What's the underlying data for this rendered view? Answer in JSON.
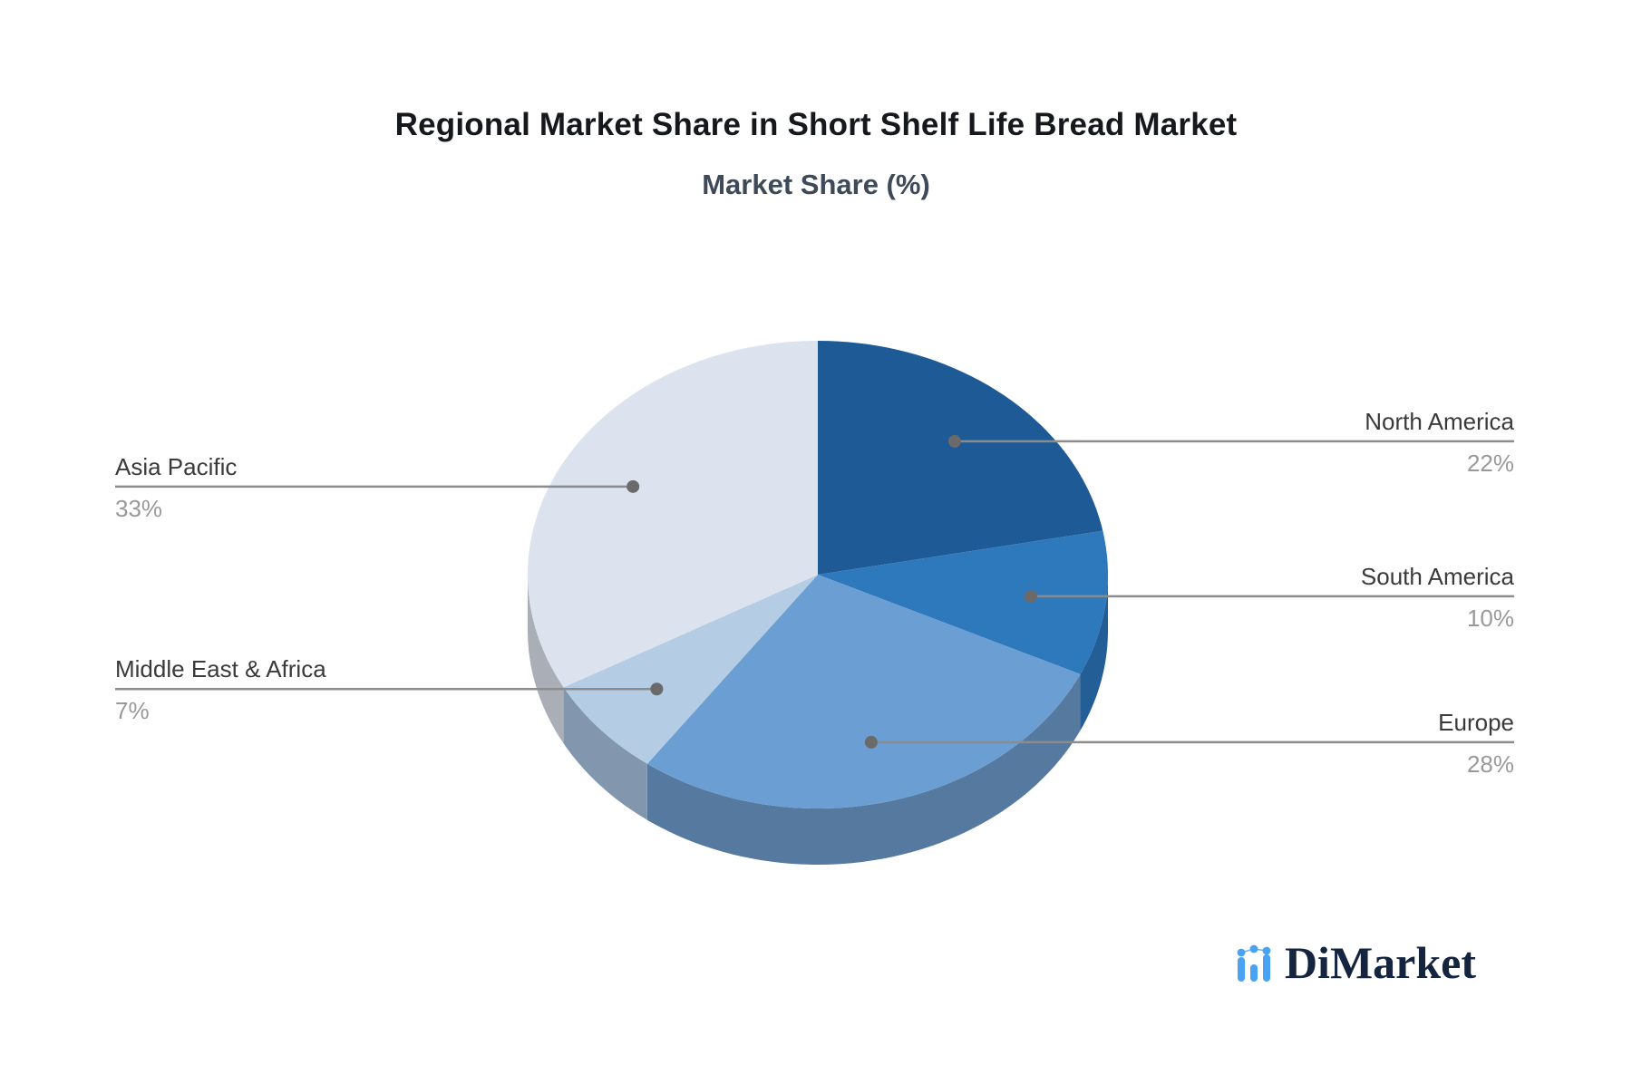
{
  "chart_data": {
    "type": "pie",
    "style": "3d-pie-with-leader-labels",
    "title": "Regional Market Share in Short Shelf Life Bread Market",
    "subtitle": "Market Share (%)",
    "unit": "%",
    "start_angle_deg": 0,
    "direction": "clockwise",
    "slices": [
      {
        "label": "North America",
        "value": 22,
        "pct_label": "22%",
        "color": "#1d5a96",
        "side_color": "#17487a",
        "label_side": "right"
      },
      {
        "label": "South America",
        "value": 10,
        "pct_label": "10%",
        "color": "#2e78bc",
        "side_color": "#235e97",
        "label_side": "right"
      },
      {
        "label": "Europe",
        "value": 28,
        "pct_label": "28%",
        "color": "#6b9fd4",
        "side_color": "#56799f",
        "label_side": "right"
      },
      {
        "label": "Middle East & Africa",
        "value": 7,
        "pct_label": "7%",
        "color": "#b5cde4",
        "side_color": "#8297ad",
        "label_side": "left"
      },
      {
        "label": "Asia Pacific",
        "value": 33,
        "pct_label": "33%",
        "color": "#dce3ef",
        "side_color": "#a9aeb7",
        "label_side": "left"
      }
    ],
    "colors": {
      "leader_line": "#8c8c8c",
      "leader_dot": "#6a6a6a",
      "label_text": "#3a3a3a",
      "pct_text": "#999999",
      "title_text": "#15181c",
      "subtitle_text": "#3f4a59"
    }
  },
  "logo": {
    "text": "DiMarket",
    "icon": "bar-chart-icon",
    "text_color": "#152540",
    "icon_color": "#4aa3f2"
  }
}
